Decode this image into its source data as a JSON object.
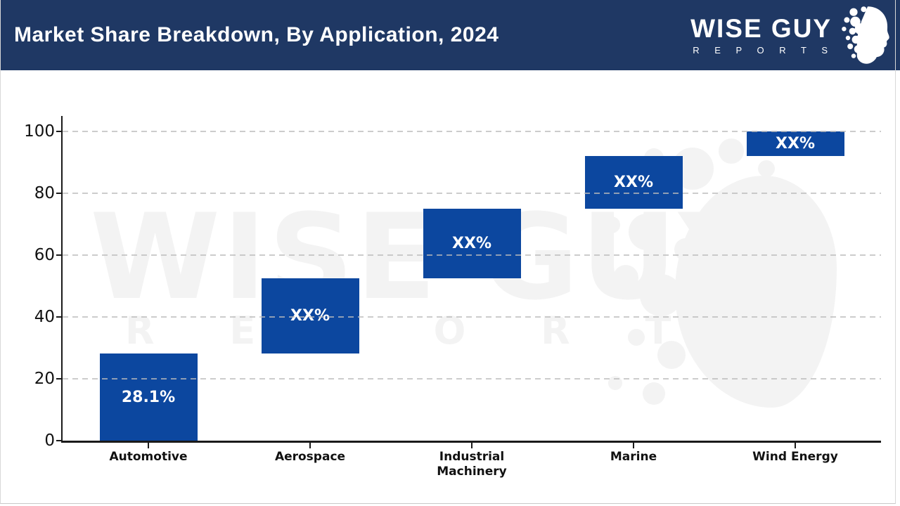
{
  "header": {
    "title": "Market Share Breakdown, By Application, 2024",
    "logo": {
      "line1": "WISE GUY",
      "line2": "R E P O R T S"
    }
  },
  "watermark": {
    "line1": "WISE GUY",
    "line2": "R E P O R T S"
  },
  "chart_data": {
    "type": "bar",
    "subtype": "waterfall",
    "title": "Market Share Breakdown, By Application, 2024",
    "categories": [
      "Automotive",
      "Aerospace",
      "Industrial Machinery",
      "Marine",
      "Wind Energy"
    ],
    "segments": [
      {
        "category": "Automotive",
        "start": 0,
        "end": 28.1,
        "label": "28.1%"
      },
      {
        "category": "Aerospace",
        "start": 28.1,
        "end": 52.5,
        "label": "XX%"
      },
      {
        "category": "Industrial Machinery",
        "start": 52.5,
        "end": 75.0,
        "label": "XX%"
      },
      {
        "category": "Marine",
        "start": 75.0,
        "end": 92.0,
        "label": "XX%"
      },
      {
        "category": "Wind Energy",
        "start": 92.0,
        "end": 100.0,
        "label": "XX%"
      }
    ],
    "yticks": [
      0,
      20,
      40,
      60,
      80,
      100
    ],
    "ylim": [
      0,
      105
    ],
    "xlabel": "",
    "ylabel": "",
    "grid": "horizontal-dashed",
    "legend": "none",
    "bar_color": "#0c479f",
    "bar_label_color": "#ffffff"
  },
  "colors": {
    "header_bg": "#1f3864",
    "bar": "#0c479f",
    "axis": "#1a1a1a",
    "grid": "#dcdcdc",
    "watermark": "#f3f3f3"
  }
}
